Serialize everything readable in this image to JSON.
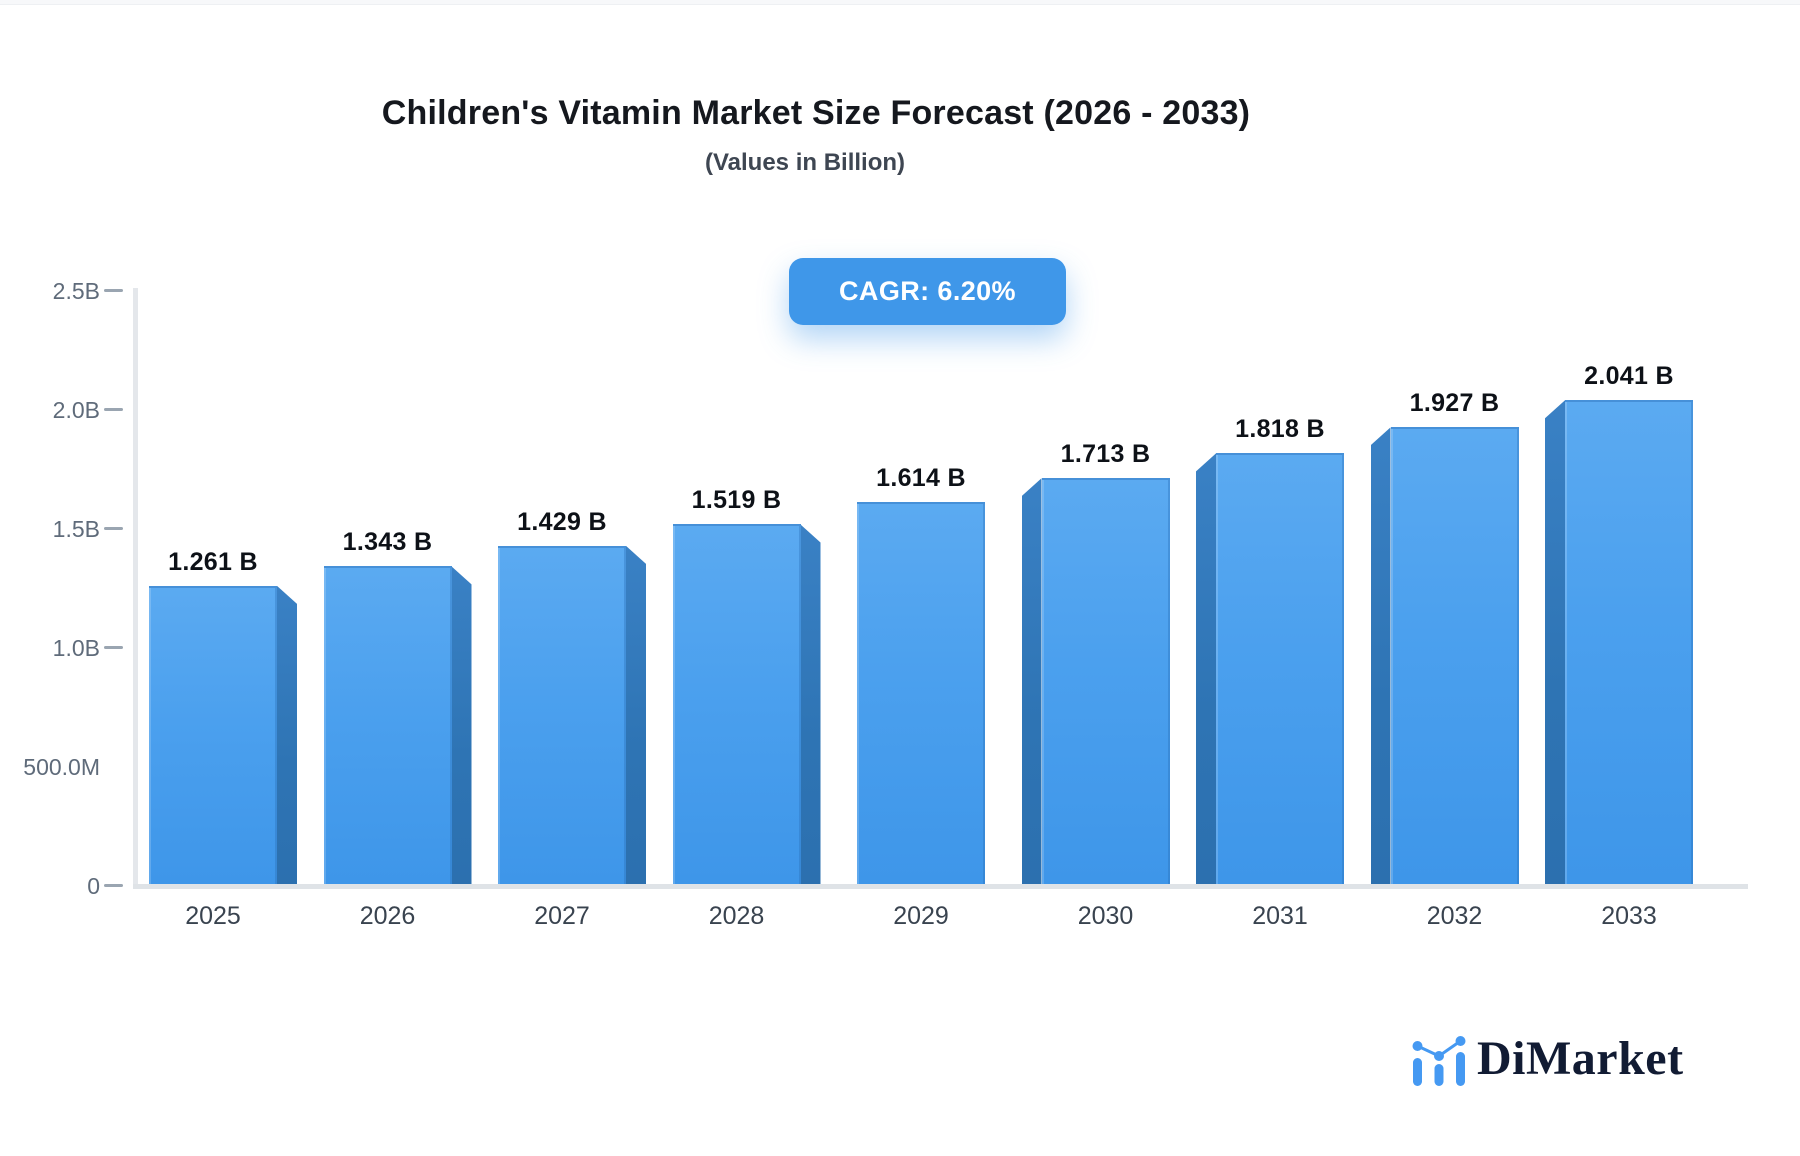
{
  "header": {
    "title": "Children's Vitamin Market Size Forecast (2026 - 2033)",
    "subtitle": "(Values in Billion)",
    "cagr_badge": "CAGR: 6.20%"
  },
  "chart_data": {
    "type": "bar",
    "title": "Children's Vitamin Market Size Forecast (2026 - 2033)",
    "subtitle": "(Values in Billion)",
    "annotation_badge": "CAGR: 6.20%",
    "categories": [
      "2025",
      "2026",
      "2027",
      "2028",
      "2029",
      "2030",
      "2031",
      "2032",
      "2033"
    ],
    "values": [
      1.261,
      1.343,
      1.429,
      1.519,
      1.614,
      1.713,
      1.818,
      1.927,
      2.041
    ],
    "value_labels": [
      "1.261 B",
      "1.343 B",
      "1.429 B",
      "1.519 B",
      "1.614 B",
      "1.713 B",
      "1.818 B",
      "1.927 B",
      "2.041 B"
    ],
    "unit": "Billion USD",
    "xlabel": "",
    "ylabel": "",
    "ylim": [
      0,
      2.5
    ],
    "yticks": [
      {
        "label": "2.5B",
        "value": 2.5,
        "tick_mark": true
      },
      {
        "label": "2.0B",
        "value": 2.0,
        "tick_mark": true
      },
      {
        "label": "1.5B",
        "value": 1.5,
        "tick_mark": true
      },
      {
        "label": "1.0B",
        "value": 1.0,
        "tick_mark": true
      },
      {
        "label": "500.0M",
        "value": 0.5,
        "tick_mark": false
      },
      {
        "label": "0",
        "value": 0.0,
        "tick_mark": true
      }
    ],
    "grid": false,
    "legend": false,
    "bar_style": "3d-center-perspective",
    "colors": {
      "bar_face_top": "#5BAAF1",
      "bar_face_bottom": "#3E96E9",
      "bar_side_panel": "#2E74B4",
      "badge_background": "#3F97E9",
      "axis_line": "#e0e3e8",
      "tick_text": "#5f6b7a",
      "value_text": "#0d1117"
    }
  },
  "footer": {
    "brand": "DiMarket",
    "logo_icon": "bar-chart-logo-icon",
    "logo_color": "#4599F2"
  }
}
